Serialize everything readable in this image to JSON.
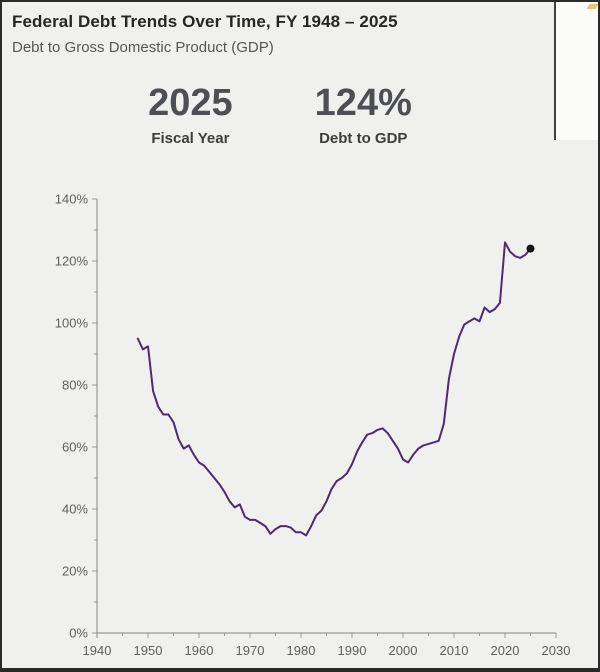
{
  "header": {
    "title": "Federal Debt Trends Over Time, FY 1948 – 2025",
    "subtitle": "Debt to Gross Domestic Product (GDP)"
  },
  "stats": [
    {
      "value": "2025",
      "label": "Fiscal Year"
    },
    {
      "value": "124%",
      "label": "Debt to GDP"
    }
  ],
  "colors": {
    "background": "#f0f0ee",
    "frame_border": "#2b2b2b",
    "line": "#4b2c6f",
    "endpoint_dot": "#121212",
    "axis": "#999999",
    "tick_label": "#5f5f5f",
    "title": "#262626",
    "subtitle": "#565656",
    "stat_value": "#4e4f54",
    "stat_label": "#3d3d3d"
  },
  "chart_data": {
    "type": "line",
    "title": "Debt to Gross Domestic Product (GDP), FY 1948 – 2025",
    "xlabel": "",
    "ylabel": "",
    "grid": false,
    "legend": "none",
    "xlim": [
      1940,
      2030
    ],
    "ylim": [
      0,
      140
    ],
    "x_ticks_major": [
      1940,
      1950,
      1960,
      1970,
      1980,
      1990,
      2000,
      2010,
      2020,
      2030
    ],
    "x_minor_step": 5,
    "y_ticks_major": [
      0,
      20,
      40,
      60,
      80,
      100,
      120,
      140
    ],
    "y_minor_step": 10,
    "y_tick_suffix": "%",
    "x": [
      1948,
      1949,
      1950,
      1951,
      1952,
      1953,
      1954,
      1955,
      1956,
      1957,
      1958,
      1959,
      1960,
      1961,
      1962,
      1963,
      1964,
      1965,
      1966,
      1967,
      1968,
      1969,
      1970,
      1971,
      1972,
      1973,
      1974,
      1975,
      1976,
      1977,
      1978,
      1979,
      1980,
      1981,
      1982,
      1983,
      1984,
      1985,
      1986,
      1987,
      1988,
      1989,
      1990,
      1991,
      1992,
      1993,
      1994,
      1995,
      1996,
      1997,
      1998,
      1999,
      2000,
      2001,
      2002,
      2003,
      2004,
      2005,
      2006,
      2007,
      2008,
      2009,
      2010,
      2011,
      2012,
      2013,
      2014,
      2015,
      2016,
      2017,
      2018,
      2019,
      2020,
      2021,
      2022,
      2023,
      2024,
      2025
    ],
    "values": [
      95,
      91.5,
      92.5,
      78,
      73,
      70.5,
      70.5,
      68,
      62.5,
      59.5,
      60.5,
      57.5,
      55,
      54,
      52,
      50,
      48,
      45.5,
      42.5,
      40.5,
      41.5,
      37.5,
      36.5,
      36.5,
      35.5,
      34.5,
      32,
      33.5,
      34.5,
      34.5,
      34,
      32.5,
      32.5,
      31.5,
      34.5,
      38,
      39.5,
      42.5,
      46.5,
      49,
      50,
      51.5,
      54.5,
      58.5,
      61.5,
      64,
      64.5,
      65.5,
      66,
      64.5,
      62,
      59.5,
      56,
      55,
      57.5,
      59.5,
      60.5,
      61,
      61.5,
      62,
      67.5,
      82,
      90,
      95.5,
      99.5,
      100.5,
      101.5,
      100.5,
      105,
      103.5,
      104.5,
      106.5,
      126,
      123,
      121.5,
      121,
      122,
      124
    ],
    "endpoint": {
      "x": 2025,
      "y": 124,
      "style": "black-dot",
      "radius": 4
    }
  }
}
